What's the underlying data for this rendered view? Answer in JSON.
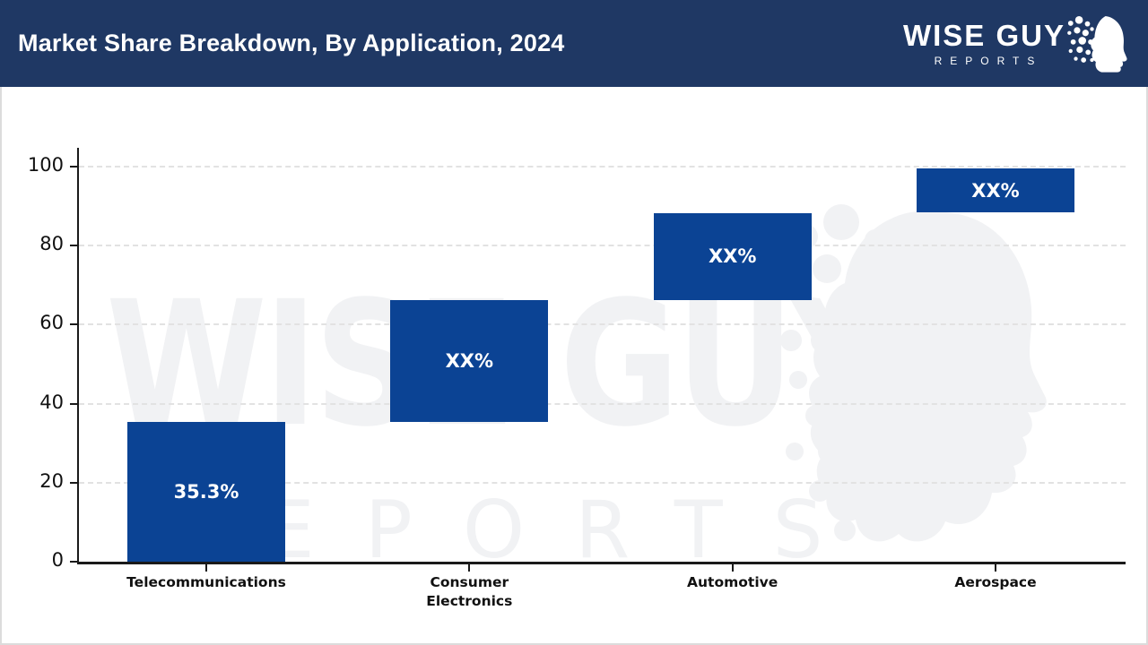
{
  "header": {
    "title": "Market Share Breakdown, By Application, 2024",
    "logo": {
      "line1": "WISE GUY",
      "line2": "REPORTS"
    }
  },
  "watermark": {
    "line1": "WISE GUY",
    "line2": "REPORTS"
  },
  "chart_data": {
    "type": "bar",
    "subtype": "waterfall-stacked-percentage",
    "title": "Market Share Breakdown, By Application, 2024",
    "unit": "%",
    "xlabel": "",
    "ylabel": "",
    "categories": [
      "Telecommunications",
      "Consumer Electronics",
      "Automotive",
      "Aerospace"
    ],
    "category_lines": [
      [
        "Telecommunications"
      ],
      [
        "Consumer",
        "Electronics"
      ],
      [
        "Automotive"
      ],
      [
        "Aerospace"
      ]
    ],
    "segments": [
      {
        "category": "Telecommunications",
        "start": 0,
        "end": 35.3,
        "label": "35.3%"
      },
      {
        "category": "Consumer Electronics",
        "start": 35.3,
        "end": 66.2,
        "label": "XX%"
      },
      {
        "category": "Automotive",
        "start": 66.3,
        "end": 88.2,
        "label": "XX%"
      },
      {
        "category": "Aerospace",
        "start": 88.4,
        "end": 99.5,
        "label": "XX%"
      }
    ],
    "yticks": [
      0,
      20,
      40,
      60,
      80,
      100
    ],
    "ylim": [
      0,
      105
    ],
    "grid": "horizontal-dashed",
    "legend": "none",
    "bar_color": "#0b4394",
    "bar_label_color": "#ffffff"
  },
  "colors": {
    "header_bg": "#1f3864",
    "bar": "#0b4394",
    "grid": "#e2e2e2",
    "axis": "#1a1a1a",
    "watermark": "#f1f2f4",
    "card_border": "#dcdcdc"
  }
}
